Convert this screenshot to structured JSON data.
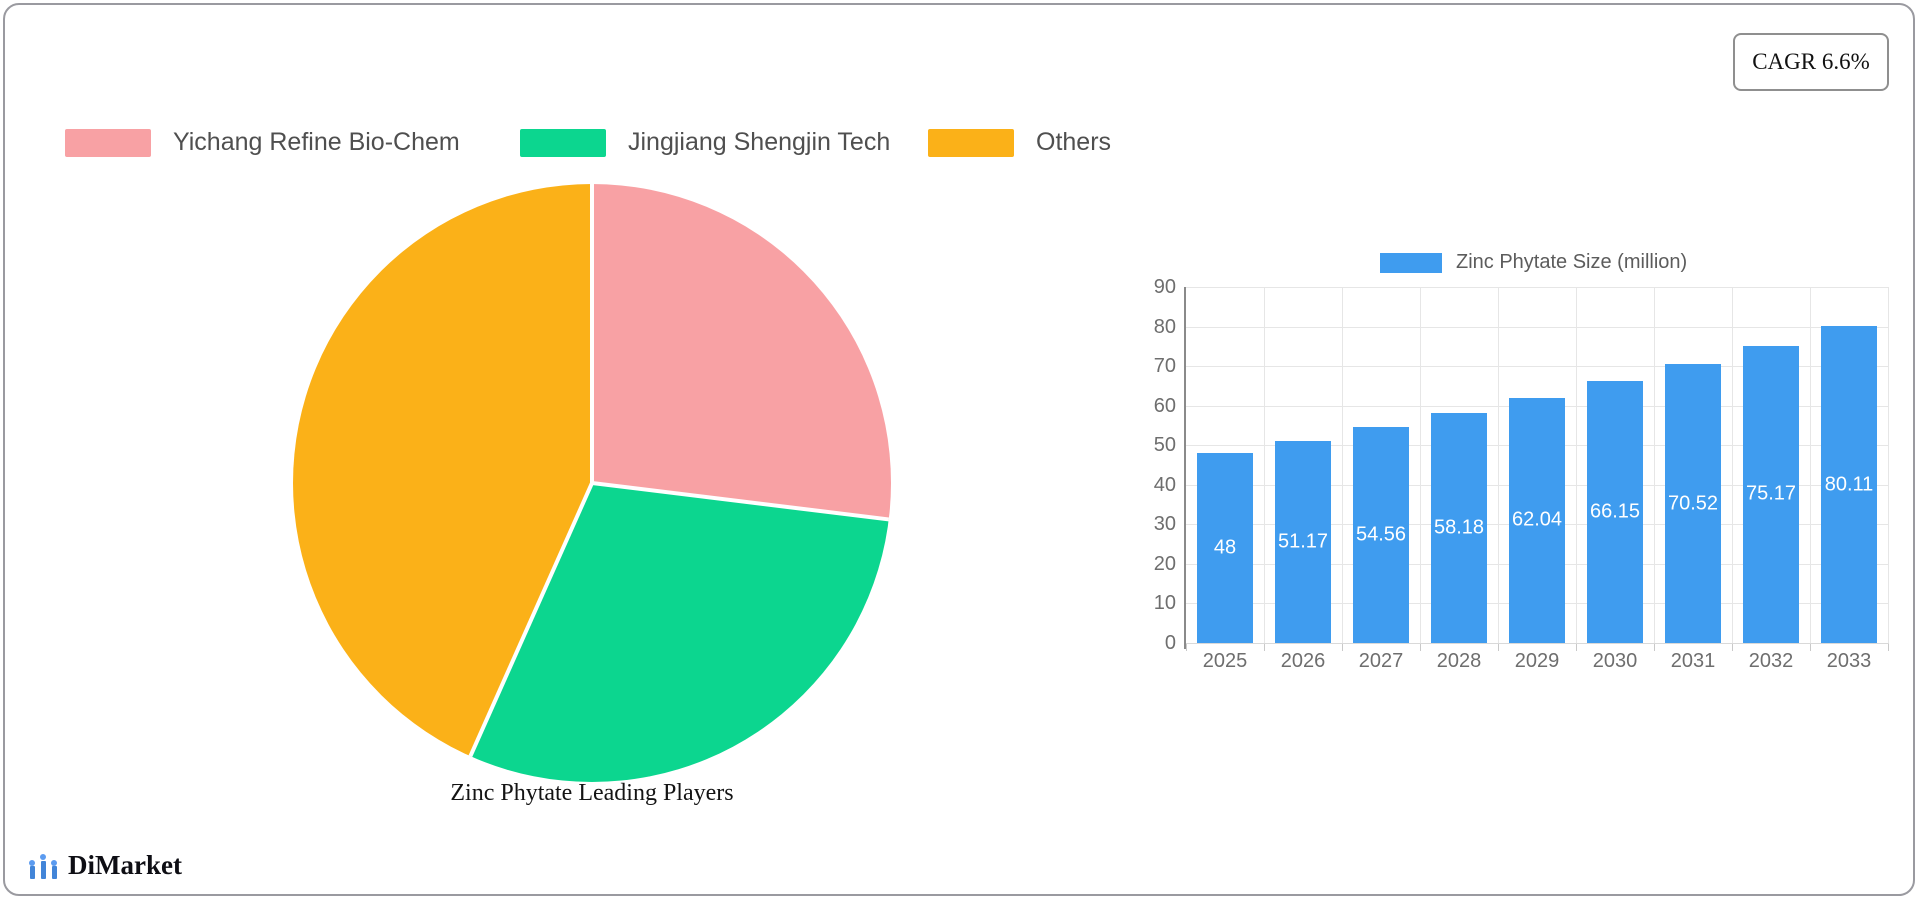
{
  "cagr_badge": {
    "label": "CAGR 6.6%"
  },
  "pie_legend": {
    "items": [
      {
        "label": "Yichang Refine Bio-Chem",
        "color": "#F8A1A4"
      },
      {
        "label": "Jingjiang Shengjin Tech",
        "color": "#0CD68F"
      },
      {
        "label": "Others",
        "color": "#FBB118"
      }
    ]
  },
  "pie_title": "Zinc Phytate Leading Players",
  "bar_legend": {
    "label": "Zinc Phytate Size (million)",
    "color": "#3F9CEF"
  },
  "brand": {
    "name": "DiMarket"
  },
  "chart_data": [
    {
      "type": "pie",
      "title": "Zinc Phytate Leading Players",
      "legend_position": "top",
      "segments": [
        {
          "label": "Yichang Refine Bio-Chem",
          "color": "#F8A1A4",
          "percent": 26.9,
          "start_angle_deg": 0,
          "end_angle_deg": 97
        },
        {
          "label": "Jingjiang Shengjin Tech",
          "color": "#0CD68F",
          "percent": 29.7,
          "start_angle_deg": 97,
          "end_angle_deg": 204
        },
        {
          "label": "Others",
          "color": "#FBB118",
          "percent": 43.4,
          "start_angle_deg": 204,
          "end_angle_deg": 360
        }
      ]
    },
    {
      "type": "bar",
      "title": "",
      "legend": [
        "Zinc Phytate Size (million)"
      ],
      "categories": [
        "2025",
        "2026",
        "2027",
        "2028",
        "2029",
        "2030",
        "2031",
        "2032",
        "2033"
      ],
      "series": [
        {
          "name": "Zinc Phytate Size (million)",
          "values": [
            48,
            51.17,
            54.56,
            58.18,
            62.04,
            66.15,
            70.52,
            75.17,
            80.11
          ]
        }
      ],
      "xlabel": "",
      "ylabel": "",
      "ylim": [
        0,
        90
      ],
      "ytick_step": 10,
      "grid": true,
      "bar_color": "#3F9CEF",
      "value_label_style": "inside-center-white",
      "annotation": "CAGR 6.6%"
    }
  ]
}
